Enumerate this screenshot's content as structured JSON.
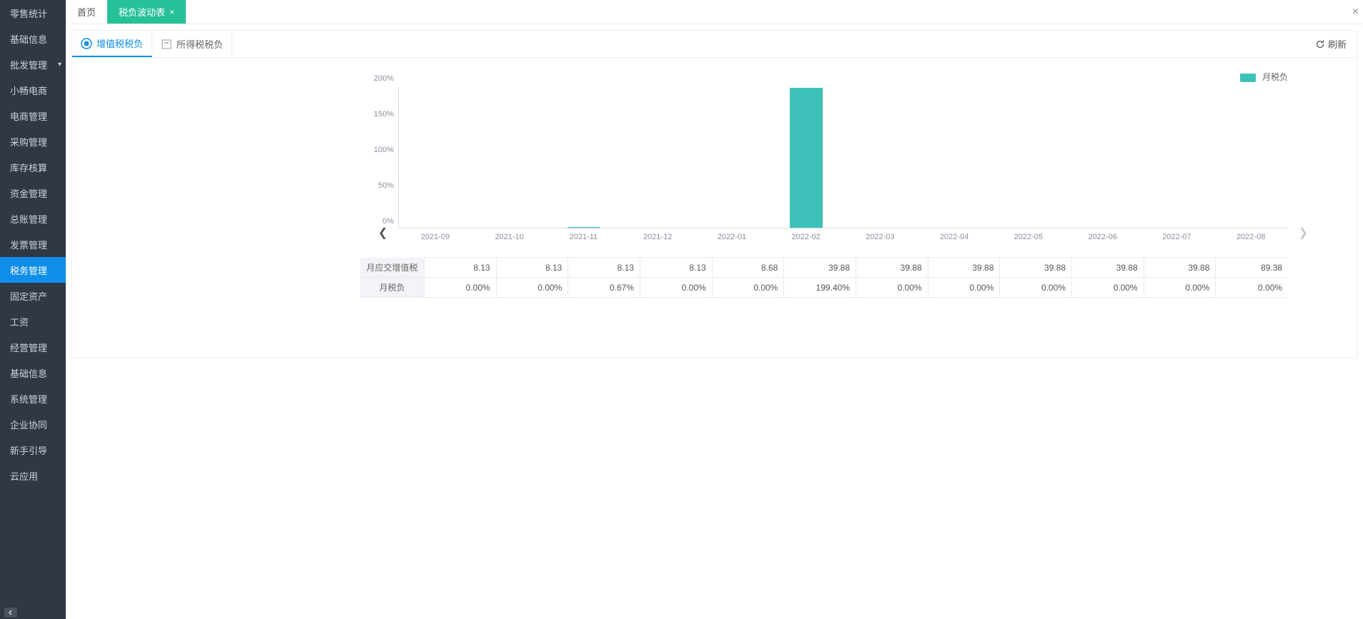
{
  "sidebar": {
    "items": [
      {
        "label": "零售统计",
        "active": false,
        "caret": false
      },
      {
        "label": "基础信息",
        "active": false,
        "caret": false
      },
      {
        "label": "批发管理",
        "active": false,
        "caret": true
      },
      {
        "label": "小畅电商",
        "active": false,
        "caret": false
      },
      {
        "label": "电商管理",
        "active": false,
        "caret": false
      },
      {
        "label": "采购管理",
        "active": false,
        "caret": false
      },
      {
        "label": "库存核算",
        "active": false,
        "caret": false
      },
      {
        "label": "资金管理",
        "active": false,
        "caret": false
      },
      {
        "label": "总账管理",
        "active": false,
        "caret": false
      },
      {
        "label": "发票管理",
        "active": false,
        "caret": false
      },
      {
        "label": "税务管理",
        "active": true,
        "caret": false
      },
      {
        "label": "固定资产",
        "active": false,
        "caret": false
      },
      {
        "label": "工资",
        "active": false,
        "caret": false
      },
      {
        "label": "经营管理",
        "active": false,
        "caret": false
      },
      {
        "label": "基础信息",
        "active": false,
        "caret": false
      },
      {
        "label": "系统管理",
        "active": false,
        "caret": false
      },
      {
        "label": "企业协同",
        "active": false,
        "caret": false
      },
      {
        "label": "新手引导",
        "active": false,
        "caret": false
      },
      {
        "label": "云应用",
        "active": false,
        "caret": false
      }
    ]
  },
  "tabs": {
    "items": [
      {
        "label": "首页",
        "active": false,
        "closable": false
      },
      {
        "label": "税负波动表",
        "active": true,
        "closable": true
      }
    ]
  },
  "filter_tabs": {
    "vat": "增值税税负",
    "income": "所得税税负"
  },
  "refresh_label": "刷新",
  "chart": {
    "type": "bar",
    "legend_label": "月税负",
    "bar_color": "#3ec1b8",
    "axis_color": "#d9dde3",
    "label_color": "#8a8f99",
    "ylim": [
      0,
      200
    ],
    "ytick_step": 50,
    "y_ticks": [
      "0%",
      "50%",
      "100%",
      "150%",
      "200%"
    ],
    "categories": [
      "2021-09",
      "2021-10",
      "2021-11",
      "2021-12",
      "2022-01",
      "2022-02",
      "2022-03",
      "2022-04",
      "2022-05",
      "2022-06",
      "2022-07",
      "2022-08"
    ],
    "values_pct": [
      0.0,
      0.0,
      0.67,
      0.0,
      0.0,
      199.4,
      0.0,
      0.0,
      0.0,
      0.0,
      0.0,
      0.0
    ]
  },
  "table": {
    "row_headers": [
      "月应交增值税",
      "月税负"
    ],
    "rows": [
      [
        "8.13",
        "8.13",
        "8.13",
        "8.13",
        "8.68",
        "39.88",
        "39.88",
        "39.88",
        "39.88",
        "39.88",
        "39.88",
        "89.38"
      ],
      [
        "0.00%",
        "0.00%",
        "0.67%",
        "0.00%",
        "0.00%",
        "199.40%",
        "0.00%",
        "0.00%",
        "0.00%",
        "0.00%",
        "0.00%",
        "0.00%"
      ]
    ]
  },
  "colors": {
    "sidebar_bg": "#303844",
    "sidebar_active": "#0f8ee9",
    "tab_active": "#26c199",
    "accent": "#0f8ee9"
  }
}
